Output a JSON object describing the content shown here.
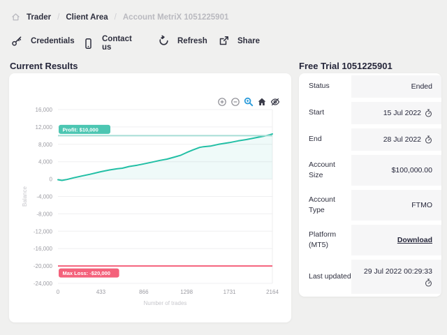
{
  "breadcrumb": {
    "separator": "/",
    "items": [
      {
        "label": "Trader"
      },
      {
        "label": "Client Area"
      },
      {
        "label": "Account MetriX 1051225901"
      }
    ]
  },
  "actions": [
    {
      "label": "Credentials",
      "icon": "key-icon"
    },
    {
      "label": "Contact us",
      "icon": "phone-icon"
    },
    {
      "label": "Refresh",
      "icon": "refresh-icon"
    },
    {
      "label": "Share",
      "icon": "share-icon"
    }
  ],
  "left_section": {
    "title": "Current Results"
  },
  "chart_toolbar": {
    "icons": [
      "zoom-in-icon",
      "zoom-out-icon",
      "zoom-select-icon",
      "home-icon",
      "hide-icon"
    ],
    "active_color": "#2d9cdb",
    "inactive_color": "#8b8b92",
    "dark_color": "#3a3b49"
  },
  "chart_data": {
    "type": "line",
    "title": "Current Results",
    "xlabel": "Number of trades",
    "ylabel": "Balance",
    "xlim": [
      0,
      2164
    ],
    "ylim": [
      -24000,
      16000
    ],
    "grid": true,
    "legend": false,
    "x_ticks": [
      {
        "v": 0,
        "label": "0"
      },
      {
        "v": 433,
        "label": "433"
      },
      {
        "v": 866,
        "label": "866"
      },
      {
        "v": 1298,
        "label": "1298"
      },
      {
        "v": 1731,
        "label": "1731"
      },
      {
        "v": 2164,
        "label": "2164"
      }
    ],
    "y_ticks": [
      {
        "v": 16000,
        "label": "16,000"
      },
      {
        "v": 12000,
        "label": "12,000"
      },
      {
        "v": 8000,
        "label": "8,000"
      },
      {
        "v": 4000,
        "label": "4,000"
      },
      {
        "v": 0,
        "label": "0"
      },
      {
        "v": -4000,
        "label": "-4,000"
      },
      {
        "v": -8000,
        "label": "-8,000"
      },
      {
        "v": -12000,
        "label": "-12,000"
      },
      {
        "v": -16000,
        "label": "-16,000"
      },
      {
        "v": -20000,
        "label": "-20,000"
      },
      {
        "v": -24000,
        "label": "-24,000"
      }
    ],
    "series": [
      {
        "name": "Balance",
        "color": "#22bfa5",
        "fill": "rgba(34,191,165,0.07)",
        "points": [
          [
            0,
            -150
          ],
          [
            40,
            -300
          ],
          [
            90,
            -100
          ],
          [
            160,
            300
          ],
          [
            240,
            700
          ],
          [
            320,
            1100
          ],
          [
            433,
            1700
          ],
          [
            520,
            2100
          ],
          [
            600,
            2400
          ],
          [
            650,
            2500
          ],
          [
            720,
            2900
          ],
          [
            800,
            3200
          ],
          [
            866,
            3500
          ],
          [
            950,
            3900
          ],
          [
            1030,
            4300
          ],
          [
            1100,
            4600
          ],
          [
            1180,
            5100
          ],
          [
            1240,
            5500
          ],
          [
            1298,
            6100
          ],
          [
            1360,
            6700
          ],
          [
            1430,
            7300
          ],
          [
            1470,
            7450
          ],
          [
            1540,
            7600
          ],
          [
            1620,
            8000
          ],
          [
            1731,
            8400
          ],
          [
            1820,
            8800
          ],
          [
            1900,
            9100
          ],
          [
            1990,
            9500
          ],
          [
            2080,
            9900
          ],
          [
            2130,
            10150
          ],
          [
            2164,
            10400
          ]
        ]
      }
    ],
    "reference_lines": [
      {
        "label": "Profit: $10,000",
        "value": 10000,
        "line_color": "#a6ded5",
        "badge_color": "#4cc6b2",
        "position": "above"
      },
      {
        "label": "Max Loss: -$20,000",
        "value": -20000,
        "line_color": "#f4617b",
        "badge_color": "#f4617b",
        "position": "below"
      }
    ]
  },
  "panel": {
    "title": "Free Trial 1051225901",
    "rows": [
      {
        "label": "Status",
        "value": "Ended"
      },
      {
        "label": "Start",
        "value": "15 Jul 2022",
        "icon": "clock-icon"
      },
      {
        "label": "End",
        "value": "28 Jul 2022",
        "icon": "clock-icon"
      },
      {
        "label": "Account Size",
        "value": "$100,000.00"
      },
      {
        "label": "Account Type",
        "value": "FTMO"
      },
      {
        "label": "Platform (MT5)",
        "value": "Download",
        "link": true
      },
      {
        "label": "Last updated",
        "value": "29 Jul 2022 00:29:33",
        "icon": "clock-icon"
      }
    ]
  },
  "colors": {
    "accent_teal": "#22bfa5",
    "loss_red": "#f4617b",
    "page_bg": "#f0f0ef",
    "card_bg": "#ffffff",
    "muted_text": "#9c9ca3"
  }
}
